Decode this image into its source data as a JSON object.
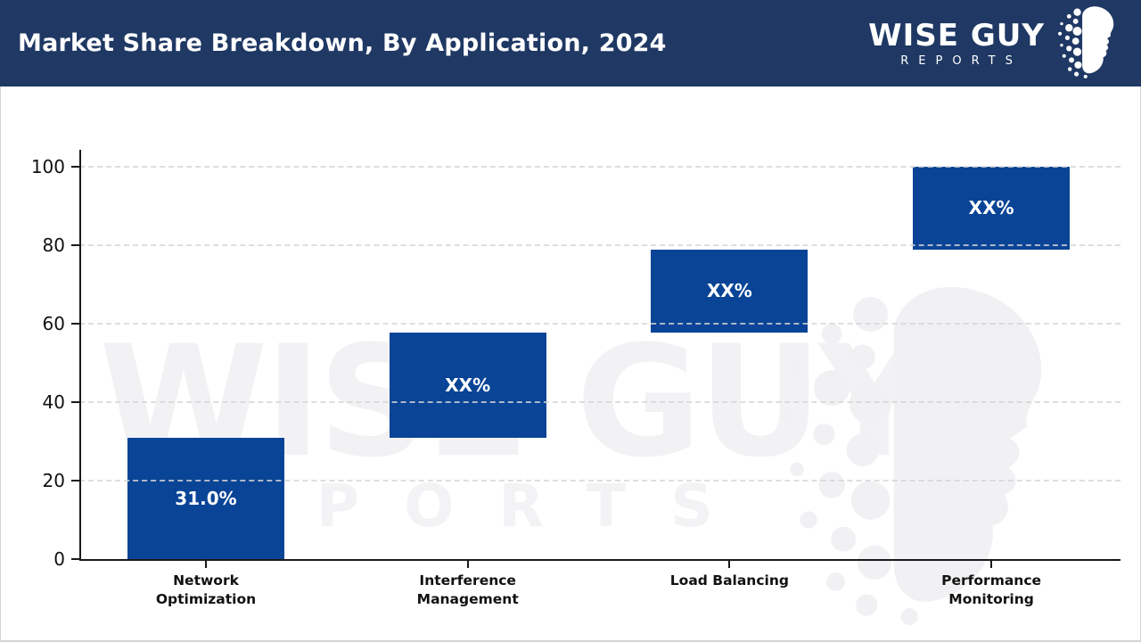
{
  "header": {
    "title": "Market Share Breakdown, By Application, 2024",
    "background_color": "#1f3864",
    "logo": {
      "line1": "WISE GUY",
      "line2": "REPORTS"
    }
  },
  "watermark": {
    "line1": "WISE GUY",
    "line2": "REPORTS"
  },
  "chart_data": {
    "type": "bar",
    "subtype": "waterfall",
    "title": "Market Share Breakdown, By Application, 2024",
    "categories": [
      "Network\nOptimization",
      "Interference\nManagement",
      "Load Balancing",
      "Performance\nMonitoring"
    ],
    "segments": [
      {
        "category": "Network Optimization",
        "start": 0,
        "end": 31,
        "label": "31.0%"
      },
      {
        "category": "Interference Management",
        "start": 31,
        "end": 57.7,
        "label": "XX%"
      },
      {
        "category": "Load Balancing",
        "start": 57.7,
        "end": 78.9,
        "label": "XX%"
      },
      {
        "category": "Performance Monitoring",
        "start": 78.9,
        "end": 100,
        "label": "XX%"
      }
    ],
    "yticks": [
      0,
      20,
      40,
      60,
      80,
      100
    ],
    "ylim": [
      0,
      100
    ],
    "xlabel": "",
    "ylabel": "",
    "bar_color": "#0a4496",
    "grid": "horizontal-dashed",
    "legend": "none"
  }
}
